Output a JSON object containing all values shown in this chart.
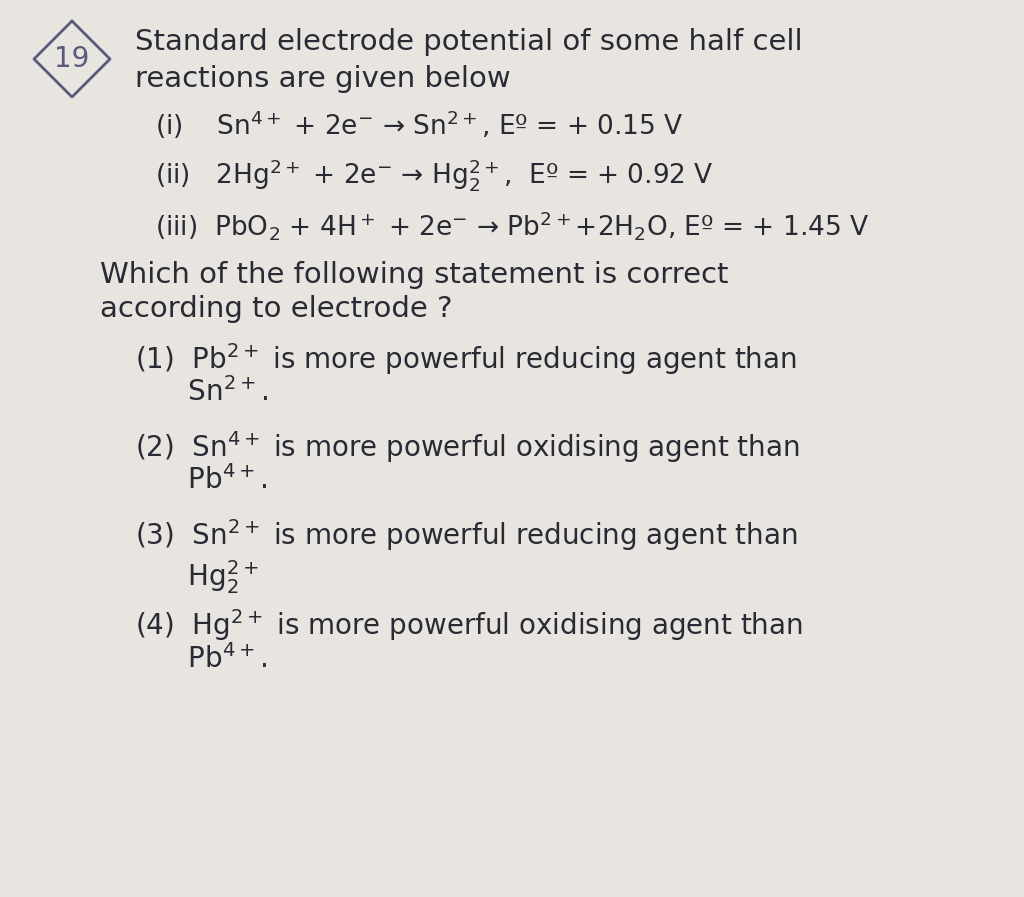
{
  "bg_color": "#e8e5e0",
  "text_color": "#2a2a35",
  "diamond_color": "#5a5a7a",
  "figsize": [
    10.24,
    8.97
  ],
  "dpi": 100,
  "question_number": "19",
  "title_line1": "Standard electrode potential of some half cell",
  "title_line2": "reactions are given below",
  "reaction_i": "(i)    Sn$^{4+}$ + 2e$^{-}$ → Sn$^{2+}$, Eº = + 0.15 V",
  "reaction_ii": "(ii)   2Hg$^{2+}$ + 2e$^{-}$ → Hg$_2^{2+}$,  Eº = + 0.92 V",
  "reaction_iii": "(iii)  PbO$_2$ + 4H$^+$ + 2e$^{-}$ → Pb$^{2+}$+2H$_2$O, Eº = + 1.45 V",
  "question_line1": "Which of the following statement is correct",
  "question_line2": "according to electrode ?",
  "opt1_line1": "(1)  Pb$^{2+}$ is more powerful reducing agent than",
  "opt1_line2": "      Sn$^{2+}$.",
  "opt2_line1": "(2)  Sn$^{4+}$ is more powerful oxidising agent than",
  "opt2_line2": "      Pb$^{4+}$.",
  "opt3_line1": "(3)  Sn$^{2+}$ is more powerful reducing agent than",
  "opt3_line2": "      Hg$_2^{2+}$",
  "opt4_line1": "(4)  Hg$^{2+}$ is more powerful oxidising agent than",
  "opt4_line2": "      Pb$^{4+}$.",
  "font_size_title": 21,
  "font_size_reactions": 19,
  "font_size_question": 21,
  "font_size_options": 20,
  "font_size_number": 20
}
